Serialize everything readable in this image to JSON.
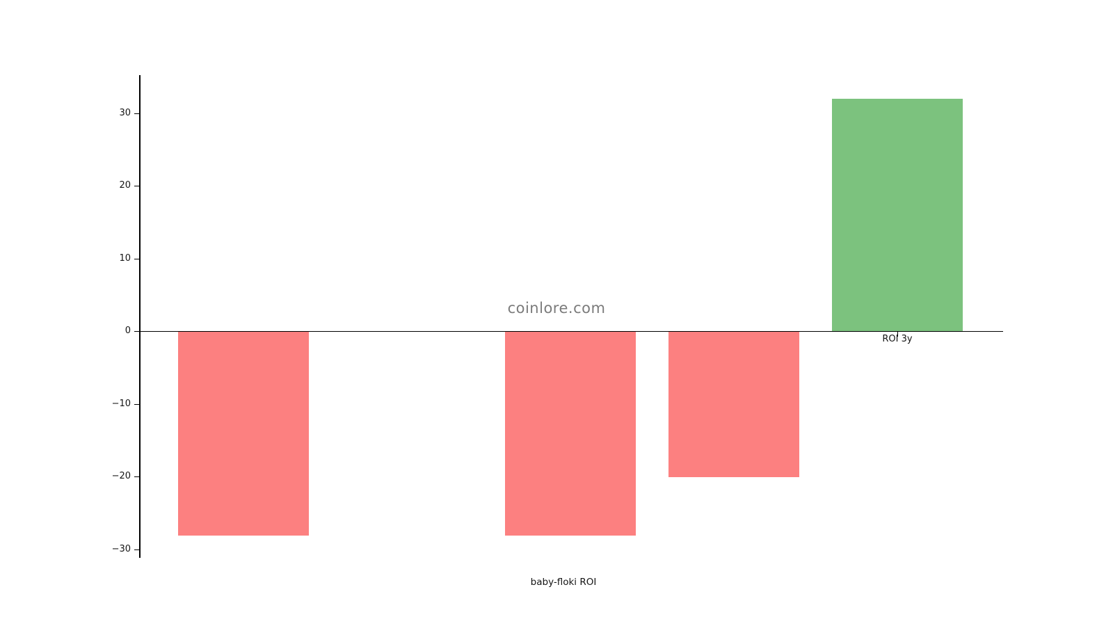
{
  "page": {
    "background": "#ffffff"
  },
  "chart_data": {
    "type": "bar",
    "title": "",
    "xlabel": "baby-floki ROI",
    "ylabel": "",
    "watermark": "coinlore.com",
    "categories": [
      "",
      "",
      "",
      "",
      "ROI 3y"
    ],
    "values": [
      -28,
      0,
      -28,
      -20,
      32
    ],
    "ylim": [
      -33,
      35
    ],
    "yticks": [
      {
        "label": "30",
        "value": 30
      },
      {
        "label": "20",
        "value": 20
      },
      {
        "label": "10",
        "value": 10
      },
      {
        "label": "0",
        "value": 0
      },
      {
        "label": "−10",
        "value": -10
      },
      {
        "label": "−20",
        "value": -20
      },
      {
        "label": "−30",
        "value": -30
      }
    ],
    "grid": false,
    "legend": "none",
    "colors": {
      "positive": "#7cc27e",
      "negative": "#fc8080",
      "axis": "#000000",
      "tick_text": "#141414",
      "watermark_text": "#7b7b7b"
    }
  }
}
